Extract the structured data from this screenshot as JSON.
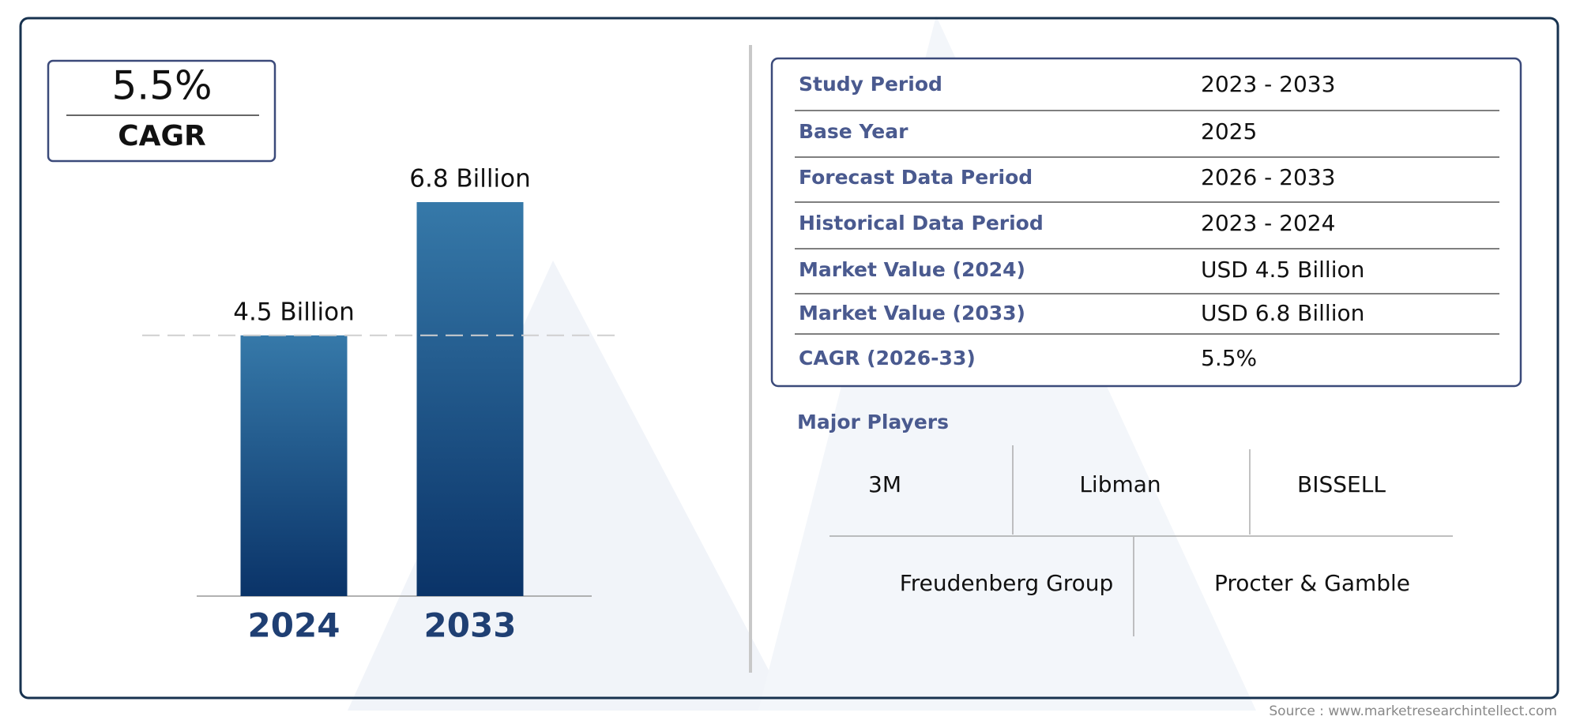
{
  "chart_data": {
    "type": "bar",
    "categories": [
      "2024",
      "2033"
    ],
    "values": [
      4.5,
      6.8
    ],
    "value_labels": [
      "4.5 Billion",
      "6.8 Billion"
    ],
    "color_top": "#3679a9",
    "color_bottom": "#0a3368"
  },
  "cagr": {
    "value": "5.5%",
    "label": "CAGR"
  },
  "summary_table": {
    "rows": [
      [
        "Study Period",
        "2023 - 2033"
      ],
      [
        "Base Year",
        "2025"
      ],
      [
        "Forecast Data Period",
        "2026 - 2033"
      ],
      [
        "Historical Data Period",
        "2023 - 2024"
      ],
      [
        "Market Value (2024)",
        "USD 4.5 Billion"
      ],
      [
        "Market Value (2033)",
        "USD 6.8 Billion"
      ],
      [
        "CAGR (2026-33)",
        "5.5%"
      ]
    ]
  },
  "major_players": {
    "title": "Major Players",
    "names": [
      "3M",
      "Libman",
      "BISSELL",
      "Freudenberg Group",
      "Procter & Gamble"
    ]
  },
  "source": "Source : www.marketresearchintellect.com"
}
